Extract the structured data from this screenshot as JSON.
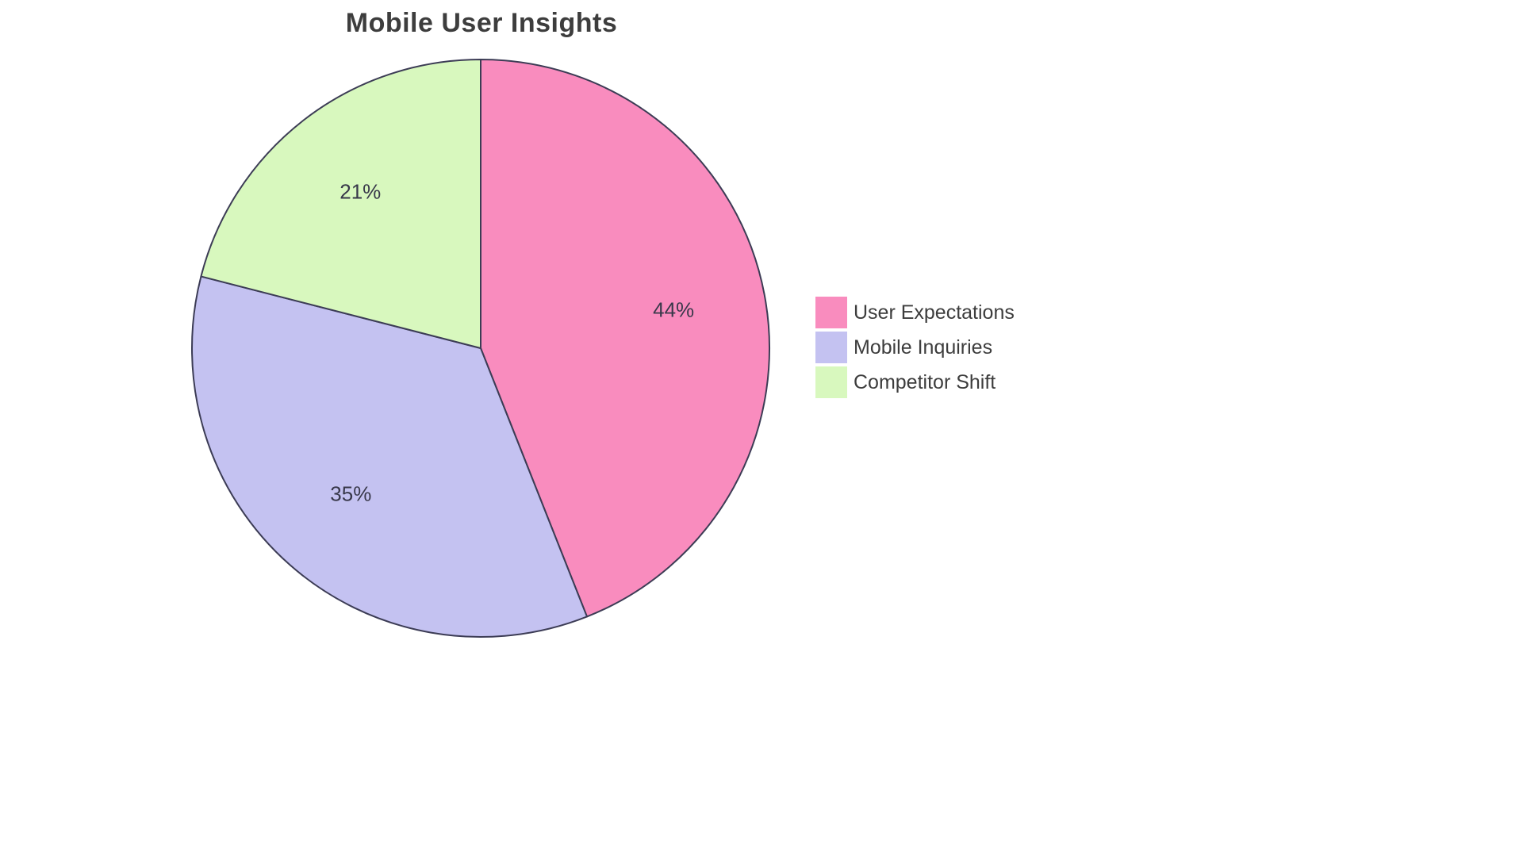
{
  "chart_data": {
    "type": "pie",
    "title": "Mobile User Insights",
    "labels": [
      "User Expectations",
      "Mobile Inquiries",
      "Competitor Shift"
    ],
    "values": [
      44,
      35,
      21
    ],
    "percent_labels": [
      "44%",
      "35%",
      "21%"
    ],
    "colors": [
      "#F98CBE",
      "#C4C2F1",
      "#D8F8BE"
    ],
    "stroke_color": "#3C3C55",
    "start_angle_deg": -90,
    "direction": "clockwise",
    "legend_position": "right",
    "grid": false
  }
}
